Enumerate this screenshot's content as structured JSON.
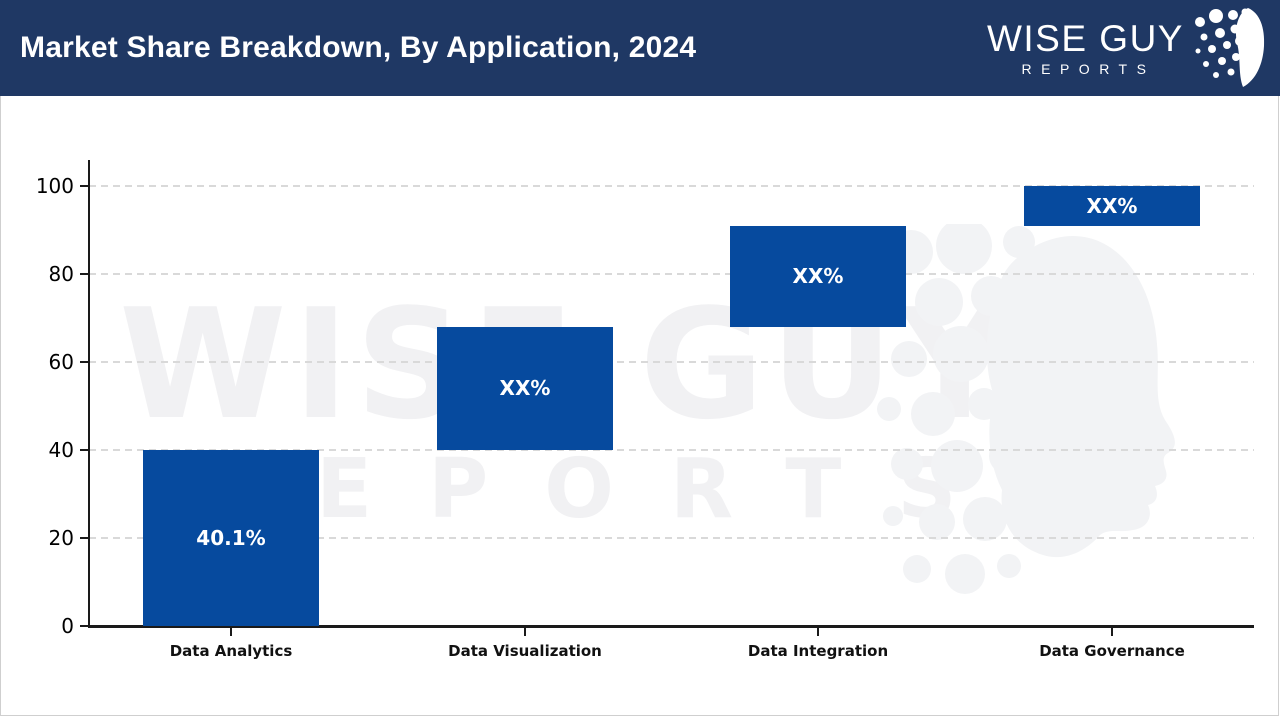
{
  "header": {
    "title": "Market Share Breakdown, By Application, 2024",
    "background_color": "#1f3864",
    "brand": {
      "name": "WISE GUY",
      "subtitle": "REPORTS",
      "face_icon": "dotted-head-profile"
    }
  },
  "watermark": {
    "line1": "WISE GUY",
    "line2": "REPORTS",
    "face_icon": "dotted-head-profile",
    "color": "#f1f1f3"
  },
  "chart_data": {
    "type": "bar",
    "subtype": "waterfall-floating-bars",
    "title": "Market Share Breakdown, By Application, 2024",
    "categories": [
      "Data Analytics",
      "Data Visualization",
      "Data Integration",
      "Data Governance"
    ],
    "bars": [
      {
        "category": "Data Analytics",
        "start": 0,
        "end": 40.1,
        "label": "40.1%"
      },
      {
        "category": "Data Visualization",
        "start": 40.1,
        "end": 68,
        "label": "XX%"
      },
      {
        "category": "Data Integration",
        "start": 68,
        "end": 91,
        "label": "XX%"
      },
      {
        "category": "Data Governance",
        "start": 91,
        "end": 100,
        "label": "XX%"
      }
    ],
    "ylim": [
      0,
      100
    ],
    "yticks": [
      0,
      20,
      40,
      60,
      80,
      100
    ],
    "xlabel": "",
    "ylabel": "",
    "grid": "horizontal-dashed",
    "legend": "none",
    "bar_color": "#064a9e",
    "bar_label_color": "#ffffff",
    "axis_color": "#1a1a1a",
    "gridline_color": "#d9d9d9"
  }
}
